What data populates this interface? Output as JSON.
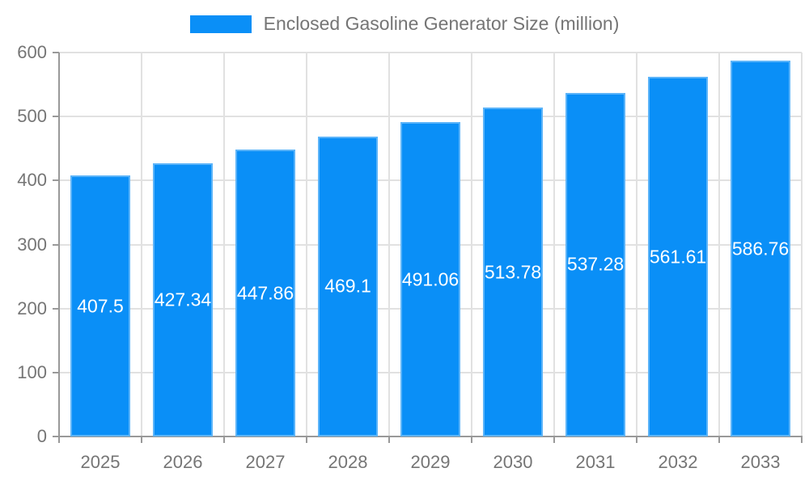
{
  "legend": {
    "label": "Enclosed Gasoline Generator Size (million)"
  },
  "chart_data": {
    "type": "bar",
    "title": "",
    "categories": [
      "2025",
      "2026",
      "2027",
      "2028",
      "2029",
      "2030",
      "2031",
      "2032",
      "2033"
    ],
    "series": [
      {
        "name": "Enclosed Gasoline Generator Size (million)",
        "values": [
          407.5,
          427.34,
          447.86,
          469.1,
          491.06,
          513.78,
          537.28,
          561.61,
          586.76
        ]
      }
    ],
    "xlabel": "",
    "ylabel": "",
    "ylim": [
      0,
      600
    ],
    "yticks": [
      0,
      100,
      200,
      300,
      400,
      500,
      600
    ],
    "grid": true,
    "legend_position": "top",
    "bar_labels_inside": true,
    "colors": {
      "bar_fill": "#0a8ff7",
      "bar_border": "#5cb4f9",
      "value_label": "#ffffff",
      "axis_text": "#757575",
      "grid_line": "#e1e1e1",
      "axis_line": "#999999",
      "background": "#ffffff"
    }
  }
}
